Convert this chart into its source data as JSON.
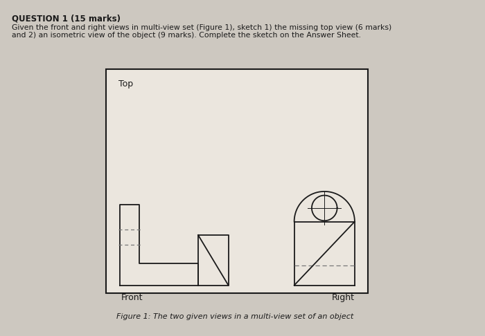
{
  "bg_color": "#cdc8c0",
  "title_text": "QUESTION 1 (15 marks)",
  "subtitle_line1": "Given the front and right views in multi-view set (Figure 1), sketch 1) the missing top view (6 marks)",
  "subtitle_line2": "and 2) an isometric view of the object (9 marks). Complete the sketch on the Answer Sheet.",
  "caption_text": "Figure 1: The two given views in a multi-view set of an object",
  "box_face": "#ebe6de",
  "line_color": "#1a1a1a",
  "dashed_color": "#777777"
}
